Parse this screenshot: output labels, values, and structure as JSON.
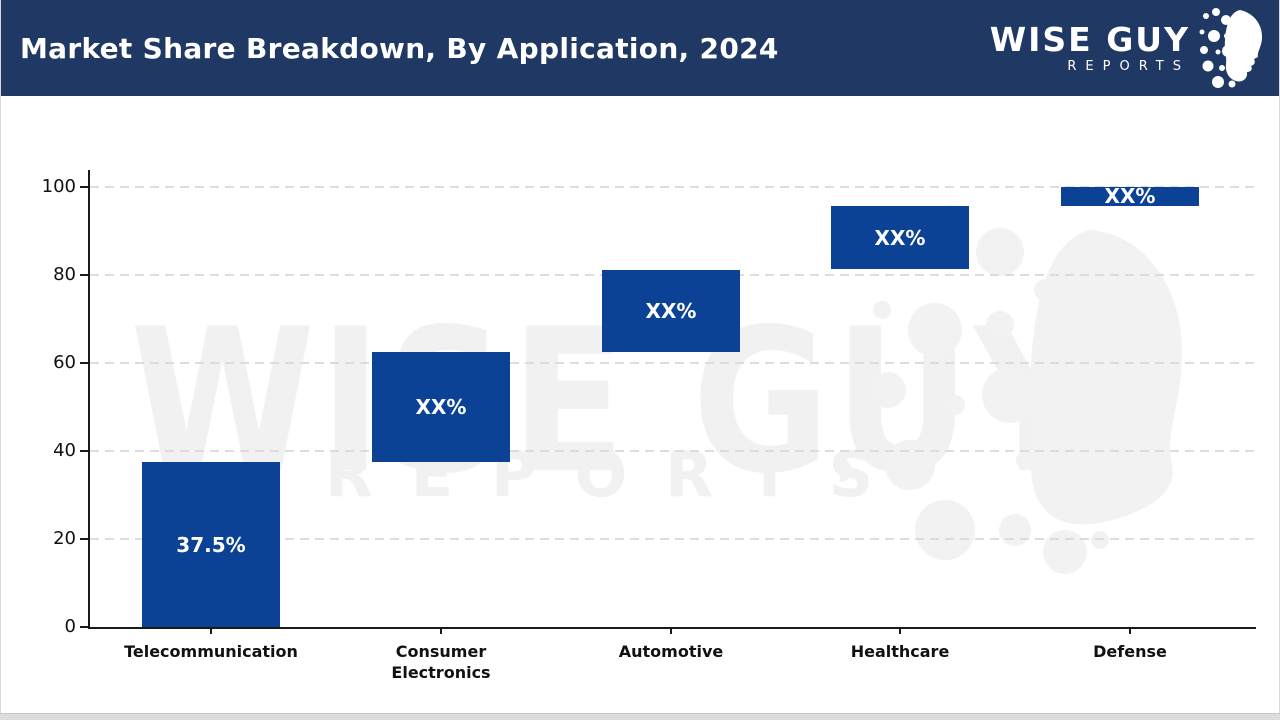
{
  "header": {
    "title": "Market Share Breakdown, By Application, 2024",
    "bg_color": "#203864",
    "logo": {
      "line1": "WISE GUY",
      "line2": "REPORTS"
    }
  },
  "watermark": {
    "line1": "WISE GUY",
    "line2": "REPORTS"
  },
  "chart_data": {
    "type": "bar",
    "subtype": "waterfall",
    "title": "Market Share Breakdown, By Application, 2024",
    "categories": [
      "Telecommunication",
      "Consumer Electronics",
      "Automotive",
      "Healthcare",
      "Defense"
    ],
    "bars": [
      {
        "category": "Telecommunication",
        "display": "Telecommunication",
        "start": 0,
        "end": 37.5,
        "label": "37.5%"
      },
      {
        "category": "Consumer Electronics",
        "display": "Consumer\nElectronics",
        "start": 37.5,
        "end": 62.5,
        "label": "XX%"
      },
      {
        "category": "Automotive",
        "display": "Automotive",
        "start": 62.5,
        "end": 81.25,
        "label": "XX%"
      },
      {
        "category": "Healthcare",
        "display": "Healthcare",
        "start": 81.25,
        "end": 95.75,
        "label": "XX%"
      },
      {
        "category": "Defense",
        "display": "Defense",
        "start": 95.75,
        "end": 100,
        "label": "XX%"
      }
    ],
    "y_ticks": [
      0,
      20,
      40,
      60,
      80,
      100
    ],
    "ylim": [
      0,
      104
    ],
    "grid": true,
    "gridline_style": "dashed",
    "gridline_color": "#dcdcdc",
    "bar_color": "#0B4296",
    "bar_label_color": "#ffffff",
    "axis_color": "#1a1a1a",
    "legend": "none"
  }
}
